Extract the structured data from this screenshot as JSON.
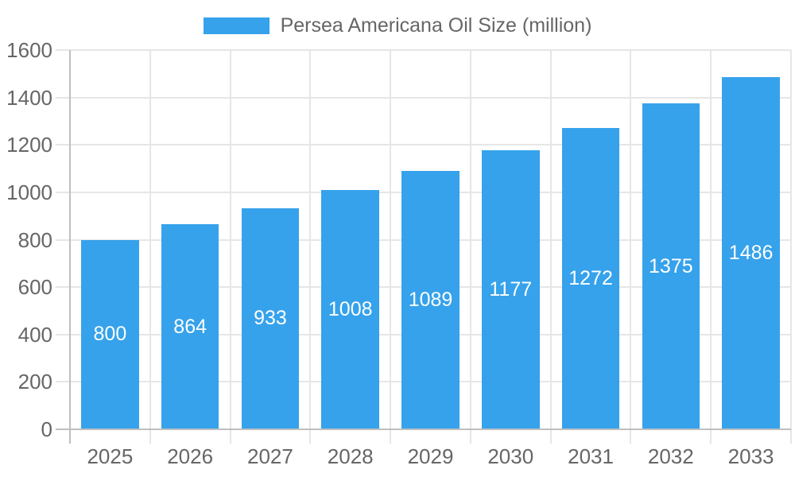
{
  "legend": {
    "label": "Persea Americana Oil Size (million)"
  },
  "colors": {
    "bar": "#36A2EB",
    "grid_line": "#e6e6e6",
    "axis_line": "#bfbfbf",
    "tick_label": "#666666",
    "legend_text": "#666666",
    "bar_value_label": "#ffffff",
    "background": "#ffffff"
  },
  "chart_data": {
    "type": "bar",
    "title": "Persea Americana Oil Size (million)",
    "categories": [
      "2025",
      "2026",
      "2027",
      "2028",
      "2029",
      "2030",
      "2031",
      "2032",
      "2033"
    ],
    "series": [
      {
        "name": "Persea Americana Oil Size (million)",
        "values": [
          800,
          864,
          933,
          1008,
          1089,
          1177,
          1272,
          1375,
          1486
        ]
      }
    ],
    "value_labels": [
      800,
      864,
      933,
      1008,
      1089,
      1177,
      1272,
      1375,
      1486
    ],
    "value_label_position": "inside-center",
    "xlabel": "",
    "ylabel": "",
    "ylim": [
      0,
      1600
    ],
    "yticks": [
      0,
      200,
      400,
      600,
      800,
      1000,
      1200,
      1400,
      1600
    ],
    "grid": true,
    "legend_position": "top"
  }
}
